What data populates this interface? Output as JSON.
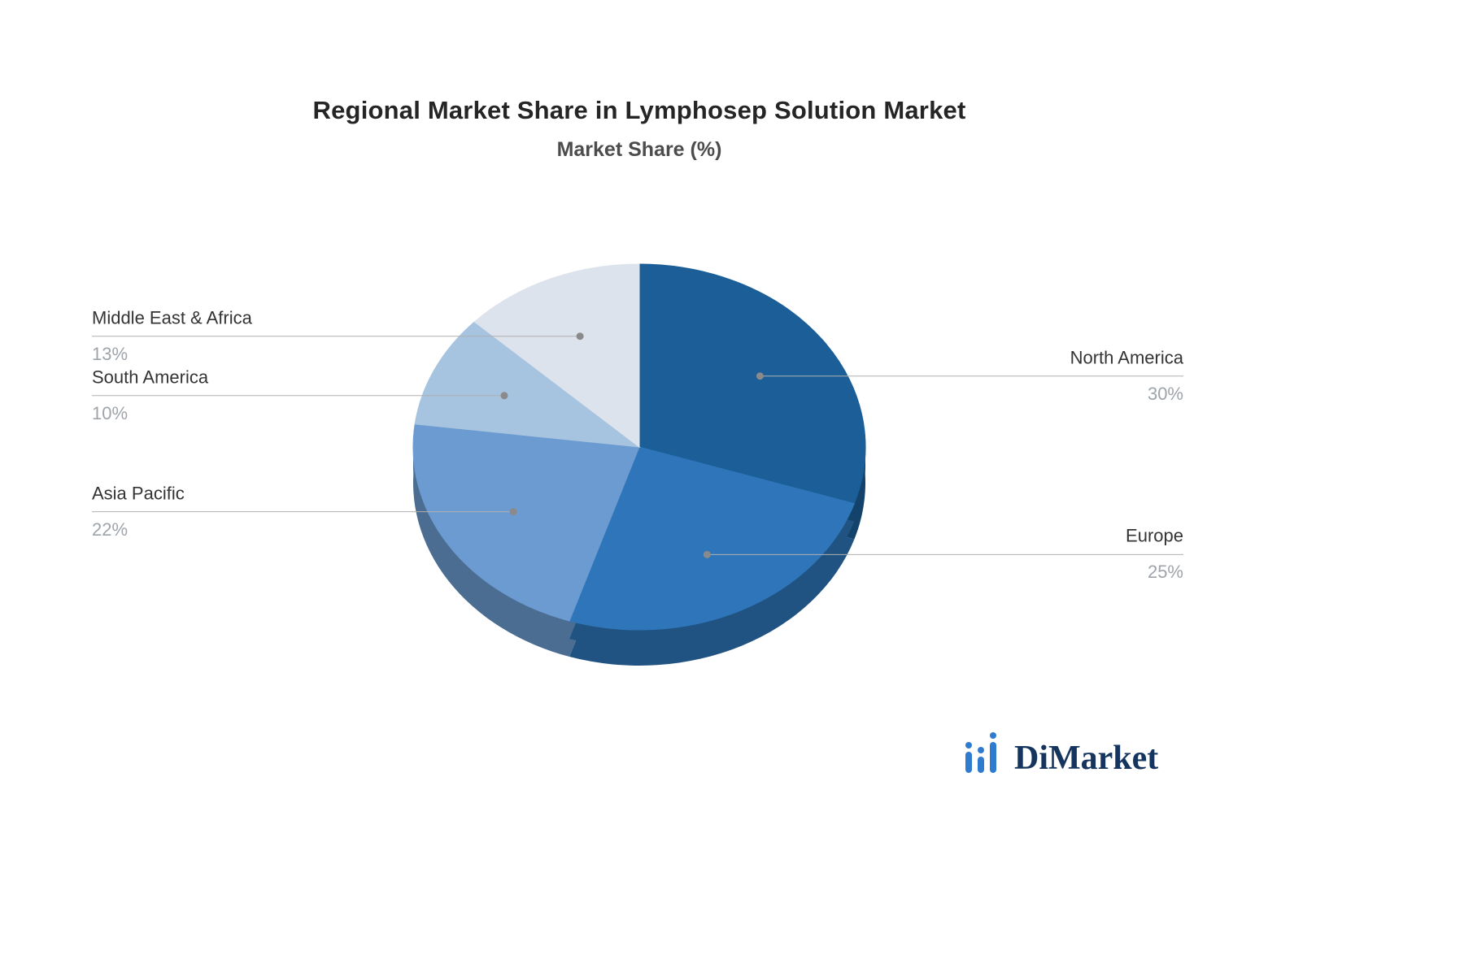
{
  "chart_data": {
    "type": "pie",
    "title": "Regional Market Share in Lymphosep Solution Market",
    "subtitle": "Market Share (%)",
    "labels": [
      "North America",
      "Europe",
      "Asia Pacific",
      "South America",
      "Middle East & Africa"
    ],
    "values": [
      30,
      25,
      22,
      10,
      13
    ],
    "unit": "%",
    "colors": [
      "#1b5e98",
      "#2e76b9",
      "#6b9bd0",
      "#a6c3e0",
      "#dde3ec"
    ],
    "start_angle_deg": 0,
    "direction": "clockwise",
    "style": "3d",
    "legend": false,
    "label_style": "callout-lines-with-percent",
    "callout_line_color": "#b0b0b0",
    "callout_dot_color": "#8a8a8a"
  },
  "logo": {
    "text": "DiMarket",
    "icon_color": "#2f7bd0",
    "text_color": "#16355e"
  }
}
